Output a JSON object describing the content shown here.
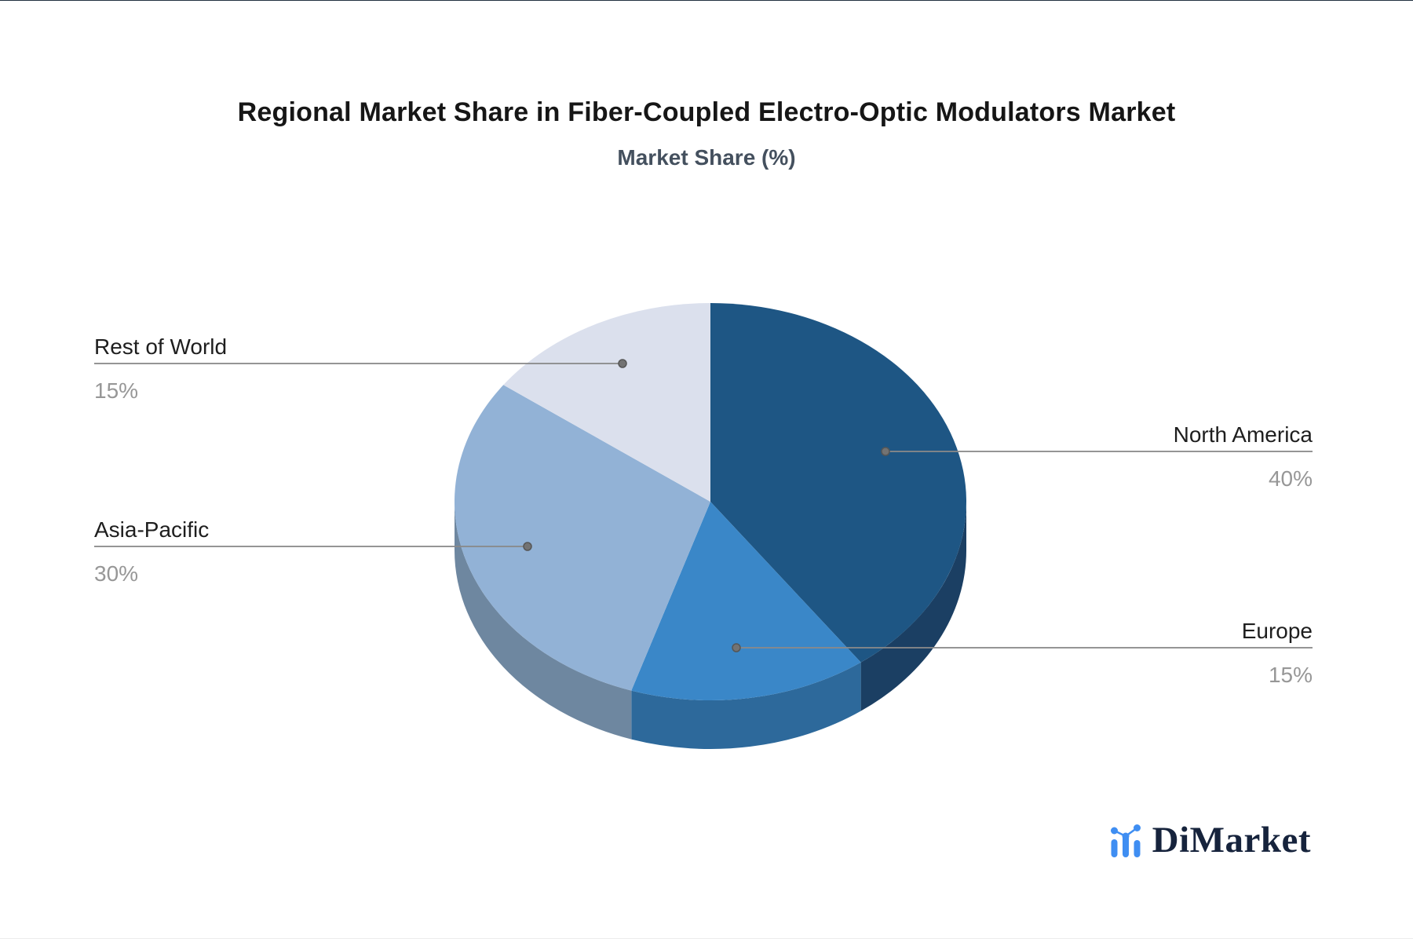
{
  "header": {
    "title": "Regional Market Share in Fiber-Coupled Electro-Optic Modulators Market",
    "subtitle": "Market Share (%)"
  },
  "chart_data": {
    "type": "pie",
    "title": "Regional Market Share in Fiber-Coupled Electro-Optic Modulators Market",
    "subtitle": "Market Share (%)",
    "unit": "percent",
    "effect": "3d",
    "direction": "clockwise",
    "start_angle_deg": 0,
    "legend_position": "callout-labels",
    "segments": [
      {
        "label": "North America",
        "value": 40,
        "value_label": "40%",
        "color": "#1e5684",
        "side_color": "#1b3f63"
      },
      {
        "label": "Europe",
        "value": 15,
        "value_label": "15%",
        "color": "#3a87c8",
        "side_color": "#2d699b"
      },
      {
        "label": "Asia-Pacific",
        "value": 30,
        "value_label": "30%",
        "color": "#92b2d6",
        "side_color": "#6e87a0"
      },
      {
        "label": "Rest of World",
        "value": 15,
        "value_label": "15%",
        "color": "#dbe0ed",
        "side_color": "#a9b4c6"
      }
    ],
    "label_color": "#1e1e1e",
    "value_color": "#979797",
    "leader_line_color": "#8a8a8a",
    "leader_dot_color": "#737373"
  },
  "branding": {
    "name": "DiMarket",
    "icon": "bar-line-chart-icon",
    "icon_color": "#3f8ef2",
    "text_color": "#16233c"
  }
}
